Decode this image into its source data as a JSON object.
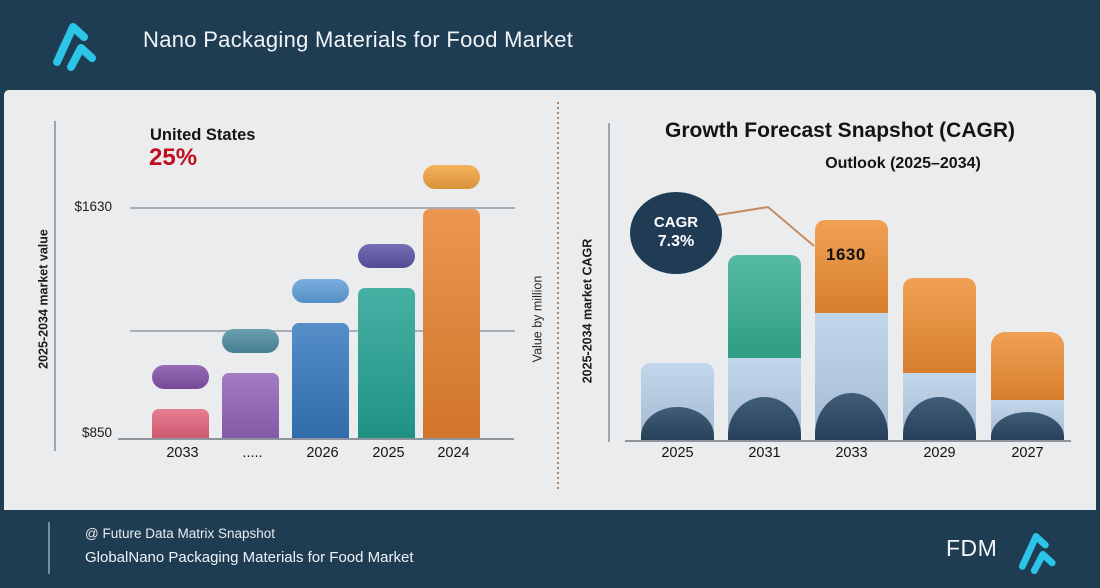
{
  "header": {
    "title": "Nano Packaging Materials for Food Market"
  },
  "footer": {
    "line1": "@ Future Data Matrix Snapshot",
    "line2": "GlobalNano Packaging Materials for Food Market",
    "brand": "FDM"
  },
  "colors": {
    "chrome_navy": "#1e3c52",
    "panel_bg": "#ebeced",
    "logo_cyan": "#2cc5e8",
    "highlight_red": "#c00e1f",
    "bubble_navy": "#1f3c54",
    "connector_tan": "#c48b62",
    "divider_dots": "#b5825a"
  },
  "chart_data": [
    {
      "type": "bar",
      "panel": "left",
      "title": "United States",
      "highlight_value": "25%",
      "y_axis_label": "2025-2034 market value",
      "y2_axis_label": "Value by million",
      "y_ticks": [
        "$1630",
        "$850"
      ],
      "ylim": [
        850,
        1630
      ],
      "grid": "line at $1630 and one unlabeled mid gridline",
      "categories": [
        "2033",
        ".....",
        "2026",
        "2025",
        "2024"
      ],
      "values": [
        950,
        1070,
        1240,
        1360,
        1630
      ],
      "bar_colors": [
        "#e4647c",
        "#9263b7",
        "#3579bd",
        "#23a292",
        "#e8822f"
      ],
      "floating_cap_colors": [
        "#8351a8",
        "#4e8da0",
        "#5f9fd9",
        "#5c53a5",
        "#f2a33f"
      ],
      "legend": "none"
    },
    {
      "type": "bar",
      "subtype": "stacked",
      "panel": "right",
      "title": "Growth Forecast Snapshot (CAGR)",
      "subtitle": "Outlook (2025–2034)",
      "y_axis_label": "2025-2034 market CAGR",
      "badge": {
        "label": "CAGR",
        "value": "7.3%"
      },
      "annotation": {
        "text": "1630",
        "category": "2033"
      },
      "categories": [
        "2025",
        "2031",
        "2033",
        "2029",
        "2027"
      ],
      "units": "relative height (unlabeled axis)",
      "series": [
        {
          "name": "base-dome",
          "color": "#2c4a67",
          "values": [
            33,
            43,
            47,
            43,
            28
          ]
        },
        {
          "name": "middle",
          "color": "#b7cfe8",
          "values": [
            44,
            39,
            80,
            24,
            12
          ]
        },
        {
          "name": "top",
          "colors": [
            "#b7cfe8",
            "#35ae93",
            "#ee8e33",
            "#ee8e33",
            "#ee8e33"
          ],
          "values": [
            0,
            103,
            93,
            95,
            68
          ]
        }
      ],
      "legend": "none"
    }
  ]
}
